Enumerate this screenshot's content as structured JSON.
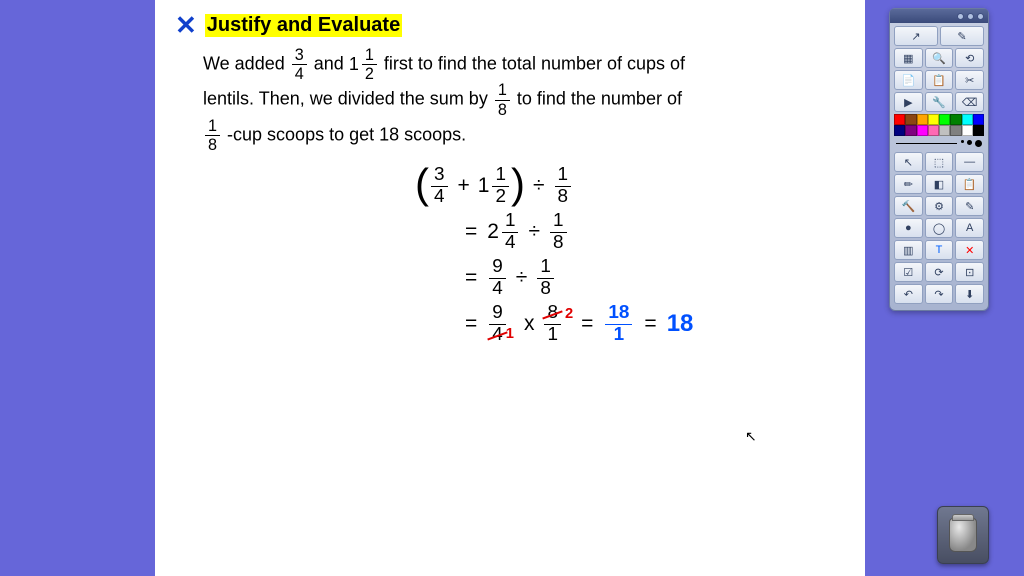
{
  "heading": "Justify and Evaluate",
  "body": {
    "t1": "We added ",
    "f1": {
      "n": "3",
      "d": "4"
    },
    "t2": " and ",
    "mix1": {
      "w": "1",
      "n": "1",
      "d": "2"
    },
    "t3": " first to find the total number of cups of",
    "t4": "lentils. Then, we divided the sum by ",
    "f2": {
      "n": "1",
      "d": "8"
    },
    "t5": " to find the number of",
    "f3": {
      "n": "1",
      "d": "8"
    },
    "t6": " -cup scoops to get 18 scoops."
  },
  "work": {
    "l1": {
      "f1": {
        "n": "3",
        "d": "4"
      },
      "plus": "+",
      "mix": {
        "w": "1",
        "n": "1",
        "d": "2"
      },
      "div": "÷",
      "f2": {
        "n": "1",
        "d": "8"
      }
    },
    "l2": {
      "eq": "=",
      "mix": {
        "w": "2",
        "n": "1",
        "d": "4"
      },
      "div": "÷",
      "f": {
        "n": "1",
        "d": "8"
      }
    },
    "l3": {
      "eq": "=",
      "f1": {
        "n": "9",
        "d": "4"
      },
      "div": "÷",
      "f2": {
        "n": "1",
        "d": "8"
      }
    },
    "l4": {
      "eq": "=",
      "f1": {
        "n": "9",
        "d": "4"
      },
      "sub": "1",
      "x": "x",
      "f2": {
        "n": "8",
        "d": "1"
      },
      "sup": "2",
      "eq2": "=",
      "f3": {
        "n": "18",
        "d": "1"
      },
      "eq3": "=",
      "ans": "18"
    }
  },
  "palette": {
    "swatches": [
      "#ff0000",
      "#8b4513",
      "#ffa500",
      "#ffff00",
      "#00ff00",
      "#008000",
      "#00ffff",
      "#0000ff",
      "#000080",
      "#800080",
      "#ff00ff",
      "#ff69b4",
      "#c0c0c0",
      "#808080",
      "#ffffff",
      "#000000"
    ],
    "tool_rows": [
      [
        "↗",
        "✎"
      ],
      [
        "▦",
        "🔍",
        "⟲"
      ],
      [
        "📄",
        "📋",
        "✂"
      ],
      [
        "▶",
        "🔧",
        "⌫"
      ],
      [
        "↖",
        "⬚",
        "—"
      ],
      [
        "✏",
        "◧",
        "📋"
      ],
      [
        "🔨",
        "⚙",
        "✎"
      ],
      [
        "●",
        "◯",
        "A"
      ],
      [
        "▥",
        "T",
        "✕"
      ],
      [
        "☑",
        "⟳",
        "⊡"
      ],
      [
        "↶",
        "↷",
        "⬇"
      ]
    ],
    "background": "#a8b4d0",
    "cell_bg": "#e8edf5",
    "border": "#6a7aa0",
    "red_x_color": "#ff0000",
    "text_T_color": "#0060ff"
  },
  "colors": {
    "desktop": "#6666d9",
    "highlight": "#ffff00",
    "blue_ink": "#0050ff",
    "red_ink": "#e00000",
    "x_mark": "#1040cc"
  }
}
